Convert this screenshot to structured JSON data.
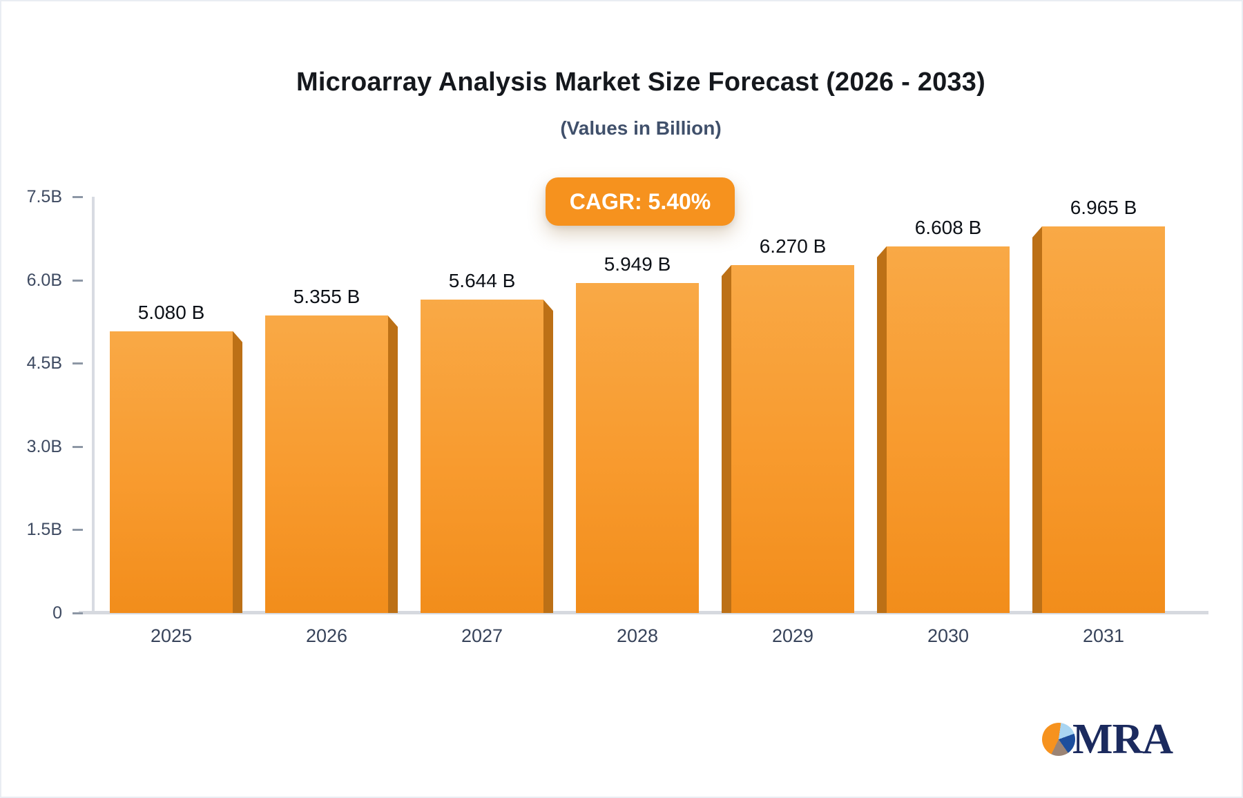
{
  "header": {
    "title": "Microarray Analysis Market Size Forecast (2026 - 2033)",
    "subtitle": "(Values in Billion)"
  },
  "badge": {
    "label": "CAGR: 5.40%"
  },
  "chart_data": {
    "type": "bar",
    "title": "Microarray Analysis Market Size Forecast (2026 - 2033)",
    "subtitle": "(Values in Billion)",
    "cagr_label": "CAGR: 5.40%",
    "unit": "Billion",
    "categories": [
      "2025",
      "2026",
      "2027",
      "2028",
      "2029",
      "2030",
      "2031"
    ],
    "values": [
      5.08,
      5.355,
      5.644,
      5.949,
      6.27,
      6.608,
      6.965
    ],
    "value_labels": [
      "5.080 B",
      "5.355 B",
      "5.644 B",
      "5.949 B",
      "6.270 B",
      "6.608 B",
      "6.965 B"
    ],
    "y_ticks": [
      {
        "label": "7.5B",
        "value": 7.5
      },
      {
        "label": "6.0B",
        "value": 6.0
      },
      {
        "label": "4.5B",
        "value": 4.5
      },
      {
        "label": "3.0B",
        "value": 3.0
      },
      {
        "label": "1.5B",
        "value": 1.5
      },
      {
        "label": "0",
        "value": 0
      }
    ],
    "ylim": [
      0,
      7.5
    ],
    "grid": false,
    "legend": false,
    "bar_style": "3d-orange"
  },
  "logo": {
    "icon": "pie-chart-icon",
    "text": "MRA"
  },
  "colors": {
    "accent": "#F6921E",
    "bar_top": "#F9A946",
    "bar_bottom": "#F28D1B",
    "bar_side": "#BC7016",
    "axis_line": "#D8DBE2",
    "axis_label": "#3E4A61",
    "title_text": "#15181D",
    "subtitle_text": "#40506B",
    "logo_navy": "#1B2A5E"
  }
}
